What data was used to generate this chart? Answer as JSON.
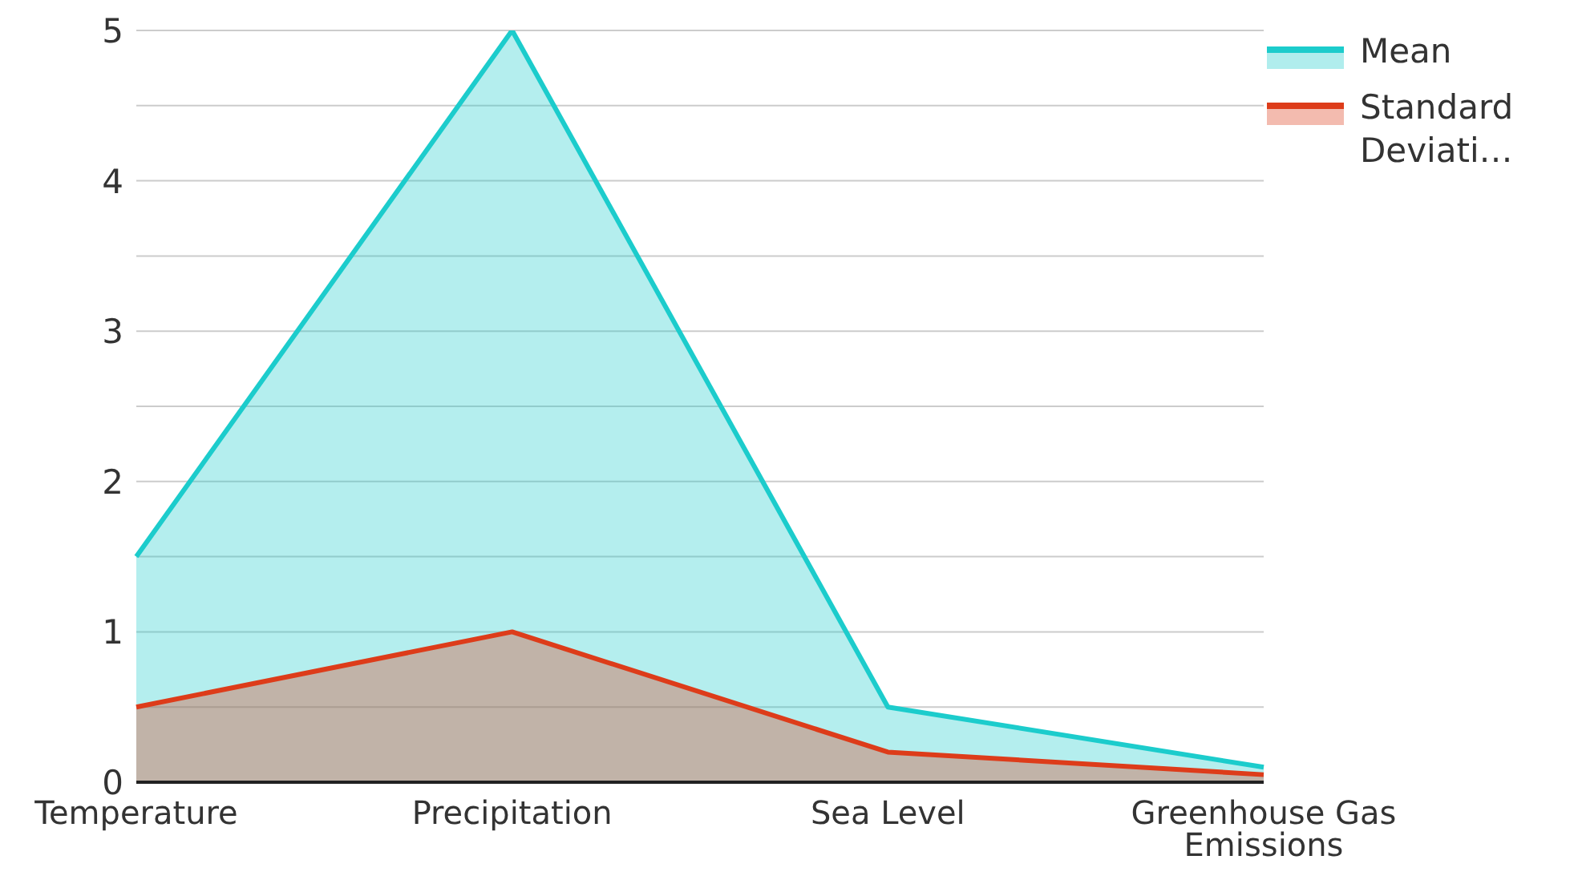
{
  "chart_data": {
    "type": "area",
    "categories": [
      "Temperature",
      "Precipitation",
      "Sea Level",
      "Greenhouse Gas Emissions"
    ],
    "series": [
      {
        "name": "Mean",
        "color": "#1ccccc",
        "values": [
          1.5,
          5,
          0.5,
          0.1
        ]
      },
      {
        "name": "Standard Deviati…",
        "color": "#dd3c1a",
        "values": [
          0.5,
          1,
          0.2,
          0.05
        ]
      }
    ],
    "ylim": [
      0,
      5
    ],
    "yticks": [
      0,
      {
        "value": 0.5,
        "label": null
      },
      1,
      {
        "value": 1.5,
        "label": null
      },
      2,
      {
        "value": 2.5,
        "label": null
      },
      3,
      {
        "value": 3.5,
        "label": null
      },
      4,
      {
        "value": 4.5,
        "label": null
      },
      5
    ],
    "grid": "y",
    "legend": "top right"
  }
}
